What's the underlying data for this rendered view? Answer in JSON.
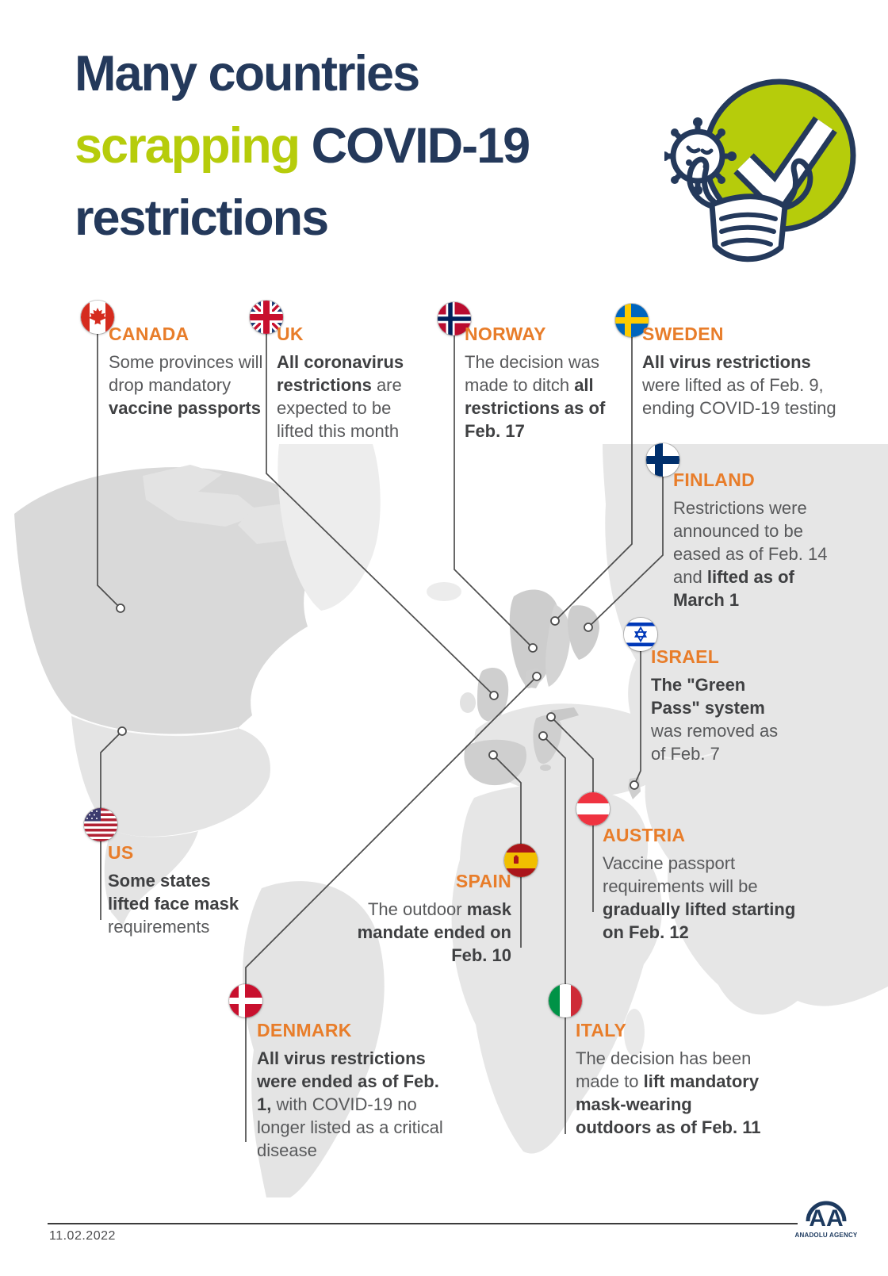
{
  "title": {
    "line1": "Many countries",
    "line2_highlight": "scrapping",
    "line2_rest": " COVID-19",
    "line3": "restrictions"
  },
  "colors": {
    "navy": "#24395b",
    "green": "#b6cc0b",
    "orange": "#e87d2a",
    "body_text": "#58595b"
  },
  "header_icon": "virus-mask-checkmark-badge-icon",
  "countries": [
    {
      "name": "CANADA",
      "flag_icon": "canada-flag-icon",
      "body": [
        {
          "t": "Some provinces will drop mandatory "
        },
        {
          "t": "vaccine passports",
          "b": true
        }
      ]
    },
    {
      "name": "UK",
      "flag_icon": "uk-flag-icon",
      "body": [
        {
          "t": "All coronavirus restrictions",
          "b": true
        },
        {
          "t": " are expected to be lifted this month"
        }
      ]
    },
    {
      "name": "NORWAY",
      "flag_icon": "norway-flag-icon",
      "body": [
        {
          "t": "The decision was made to ditch "
        },
        {
          "t": "all restrictions as of Feb. 17",
          "b": true
        }
      ]
    },
    {
      "name": "SWEDEN",
      "flag_icon": "sweden-flag-icon",
      "body": [
        {
          "t": "All virus restrictions",
          "b": true
        },
        {
          "t": " were lifted as of Feb. 9, ending COVID-19 testing"
        }
      ]
    },
    {
      "name": "FINLAND",
      "flag_icon": "finland-flag-icon",
      "body": [
        {
          "t": "Restrictions were announced to be eased as of Feb. 14 and "
        },
        {
          "t": "lifted as of March 1",
          "b": true
        }
      ]
    },
    {
      "name": "ISRAEL",
      "flag_icon": "israel-flag-icon",
      "body": [
        {
          "t": "The \"Green Pass\" system",
          "b": true
        },
        {
          "t": " was removed as of Feb. 7"
        }
      ]
    },
    {
      "name": "AUSTRIA",
      "flag_icon": "austria-flag-icon",
      "body": [
        {
          "t": "Vaccine passport requirements will be "
        },
        {
          "t": "gradually lifted starting on Feb. 12",
          "b": true
        }
      ]
    },
    {
      "name": "US",
      "flag_icon": "us-flag-icon",
      "body": [
        {
          "t": "Some states lifted face mask",
          "b": true
        },
        {
          "t": " requirements"
        }
      ]
    },
    {
      "name": "SPAIN",
      "flag_icon": "spain-flag-icon",
      "body": [
        {
          "t": "The outdoor "
        },
        {
          "t": "mask mandate ended on Feb. 10",
          "b": true
        }
      ]
    },
    {
      "name": "DENMARK",
      "flag_icon": "denmark-flag-icon",
      "body": [
        {
          "t": "All virus restrictions were ended as of Feb. 1,",
          "b": true
        },
        {
          "t": " with COVID-19 no longer listed as a critical disease"
        }
      ]
    },
    {
      "name": "ITALY",
      "flag_icon": "italy-flag-icon",
      "body": [
        {
          "t": "The decision has been made to "
        },
        {
          "t": "lift mandatory mask-wearing outdoors as of Feb. 11",
          "b": true
        }
      ]
    }
  ],
  "footer": {
    "date": "11.02.2022",
    "agency_logo_icon": "anadolu-agency-logo-icon",
    "agency_name": "ANADOLU AGENCY"
  }
}
